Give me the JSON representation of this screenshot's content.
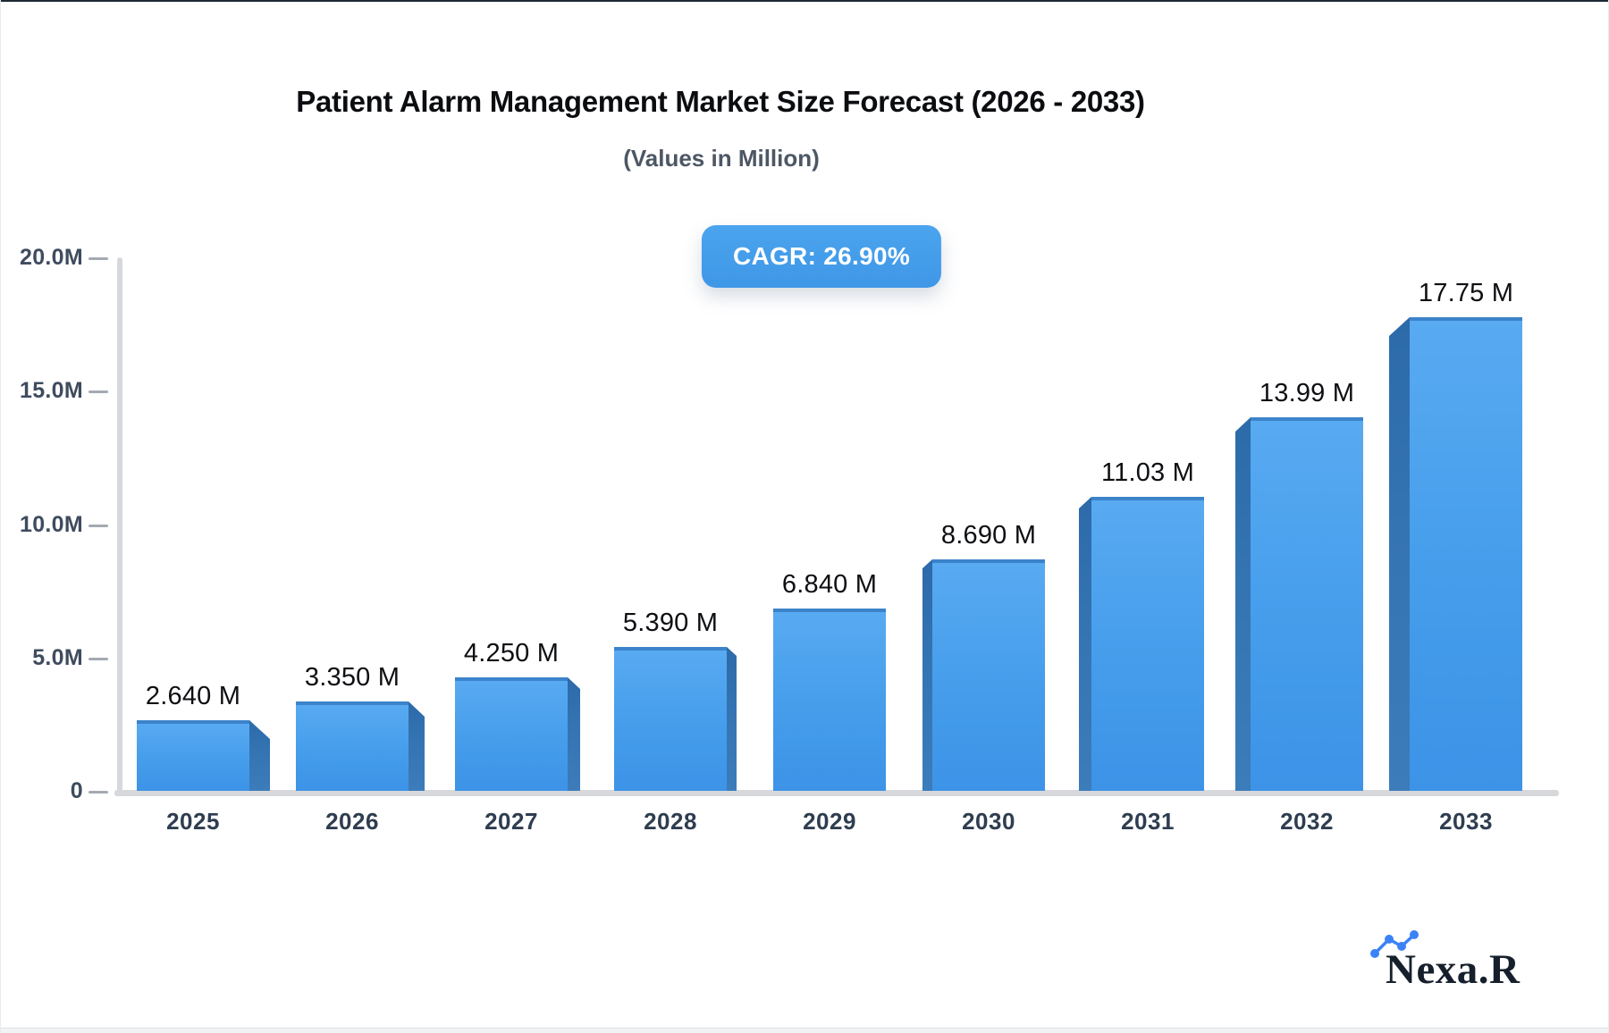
{
  "header": {
    "title": "Patient Alarm Management Market Size Forecast (2026 - 2033)",
    "subtitle": "(Values in Million)"
  },
  "badge": {
    "label": "CAGR: 26.90%",
    "bg_color": "#449ee9",
    "text_color": "#ffffff"
  },
  "chart_data": {
    "type": "bar",
    "title": "Patient Alarm Management Market Size Forecast (2026 - 2033)",
    "subtitle": "(Values in Million)",
    "unit": "Million",
    "cagr": "26.90%",
    "categories": [
      "2025",
      "2026",
      "2027",
      "2028",
      "2029",
      "2030",
      "2031",
      "2032",
      "2033"
    ],
    "values": [
      2.64,
      3.35,
      4.25,
      5.39,
      6.84,
      8.69,
      11.03,
      13.99,
      17.75
    ],
    "value_labels": [
      "2.640 M",
      "3.350 M",
      "4.250 M",
      "5.390 M",
      "6.840 M",
      "8.690 M",
      "11.03 M",
      "13.99 M",
      "17.75 M"
    ],
    "xlabel": "",
    "ylabel": "",
    "ylim": [
      0,
      20
    ],
    "y_ticks": [
      {
        "value": 0,
        "label": "0"
      },
      {
        "value": 5,
        "label": "5.0M"
      },
      {
        "value": 10,
        "label": "10.0M"
      },
      {
        "value": 15,
        "label": "15.0M"
      },
      {
        "value": 20,
        "label": "20.0M"
      }
    ],
    "grid": false,
    "legend": "none",
    "bar_style": {
      "face_top_color": "#58aaf1",
      "face_bottom_color": "#3d93e7",
      "face_edge_color": "#3b83ca",
      "side_color": "#2f6fae",
      "effect": "3d-extrusion-toward-center"
    },
    "axis_color": "#d6d8db",
    "tick_text_color": "#3f4c5e",
    "value_text_color": "#0d0f12"
  },
  "logo": {
    "text": "Nexa.R",
    "icon": "line-chart-zigzag-icon",
    "text_color": "#16202c",
    "accent_color": "#3b82f6"
  }
}
